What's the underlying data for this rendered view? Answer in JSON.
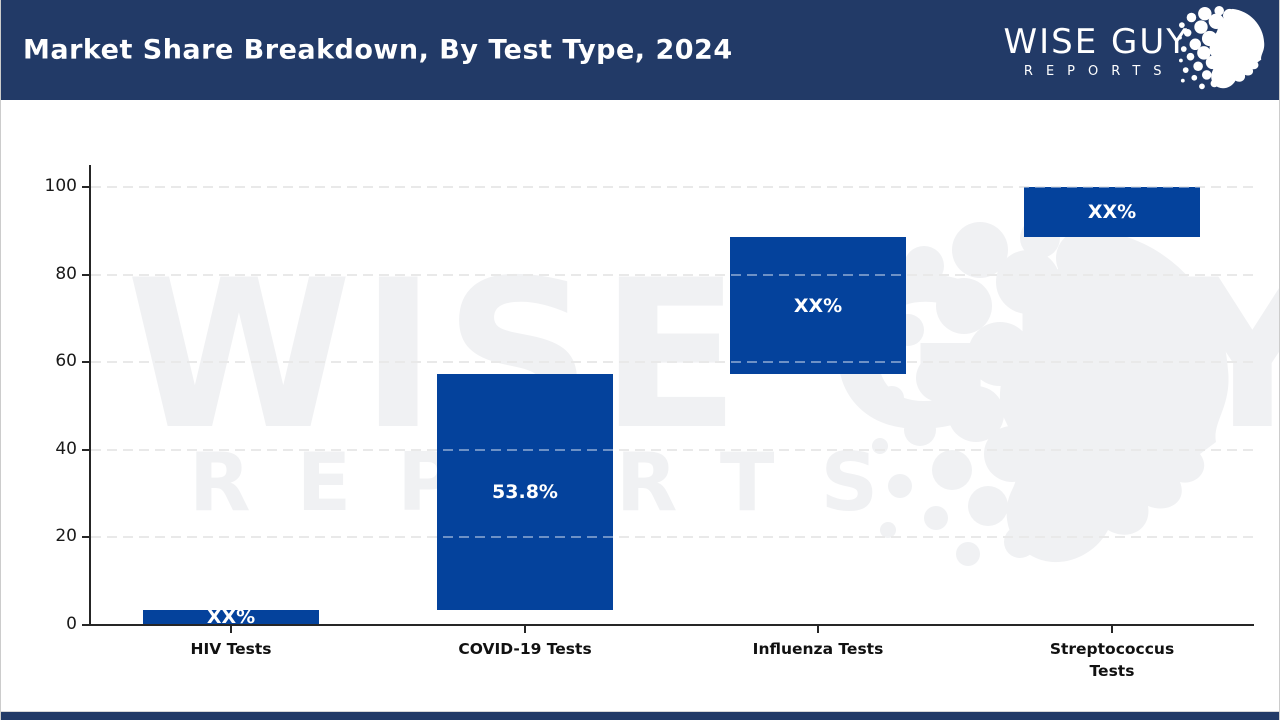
{
  "header": {
    "title": "Market Share Breakdown, By Test Type, 2024",
    "logo": {
      "line1": "WISE GUY",
      "line2": "REPORTS"
    }
  },
  "watermark": {
    "line1": "WISE GUY",
    "line2": "REPORTS"
  },
  "colors": {
    "header_bg": "#223a67",
    "bar": "#04429c",
    "grid": "#d9d9d9",
    "axis": "#262626",
    "watermark": "#f0f1f3",
    "bar_label": "#ffffff"
  },
  "chart_data": {
    "type": "bar",
    "subtype": "waterfall",
    "title": "Market Share Breakdown, By Test Type, 2024",
    "xlabel": "",
    "ylabel": "",
    "ylim": [
      0,
      100
    ],
    "yticks": [
      0,
      20,
      40,
      60,
      80,
      100
    ],
    "grid": "horizontal-dashed",
    "legend": "none",
    "categories": [
      "HIV Tests",
      "COVID-19 Tests",
      "Influenza Tests",
      "Streptococcus Tests"
    ],
    "segments": [
      {
        "category": "HIV Tests",
        "tick_lines": [
          "HIV Tests"
        ],
        "start": 0,
        "end": 3.5,
        "label": "XX%"
      },
      {
        "category": "COVID-19 Tests",
        "tick_lines": [
          "COVID-19 Tests"
        ],
        "start": 3.5,
        "end": 57.3,
        "value": 53.8,
        "label": "53.8%"
      },
      {
        "category": "Influenza Tests",
        "tick_lines": [
          "Influenza Tests"
        ],
        "start": 57.3,
        "end": 88.5,
        "label": "XX%"
      },
      {
        "category": "Streptococcus Tests",
        "tick_lines": [
          "Streptococcus",
          "Tests"
        ],
        "start": 88.5,
        "end": 100,
        "label": "XX%"
      }
    ]
  }
}
